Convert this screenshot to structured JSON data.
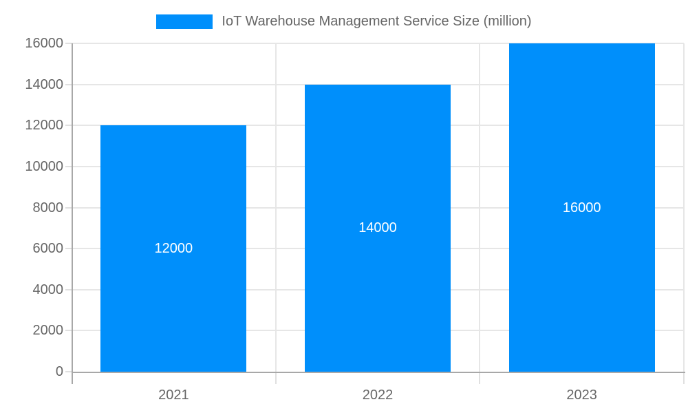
{
  "chart_data": {
    "type": "bar",
    "title": "",
    "legend_label": "IoT Warehouse Management Service Size (million)",
    "legend_position": "top",
    "categories": [
      "2021",
      "2022",
      "2023"
    ],
    "values": [
      12000,
      14000,
      16000
    ],
    "data_labels": [
      "12000",
      "14000",
      "16000"
    ],
    "xlabel": "",
    "ylabel": "",
    "ylim": [
      0,
      16000
    ],
    "y_ticks": [
      0,
      2000,
      4000,
      6000,
      8000,
      10000,
      12000,
      14000,
      16000
    ],
    "grid": true,
    "colors": {
      "bar": "#008FFB",
      "axis_line": "#a8a8a8",
      "grid_line": "#e6e6e6",
      "tick_line": "#e0e0e0",
      "tick_text": "#666666",
      "data_label_text": "#ffffff",
      "background": "#ffffff"
    }
  }
}
